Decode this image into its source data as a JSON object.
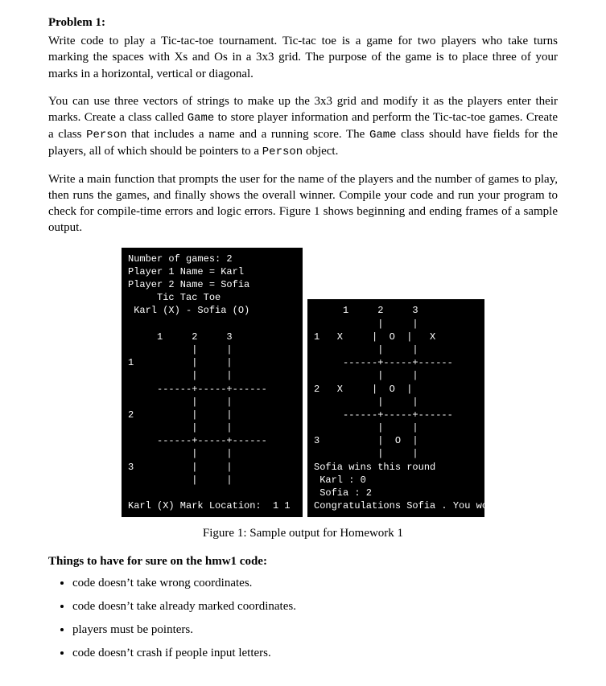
{
  "problem": {
    "title": "Problem 1:",
    "para1": "Write code to play a Tic-tac-toe tournament. Tic-tac toe is a game for two players who take turns marking the spaces with Xs and Os in a 3x3 grid. The purpose of the game is to place three of your marks in a horizontal, vertical or diagonal.",
    "para2_a": "You can use three vectors of strings to make up the 3x3 grid and modify it as the players enter their marks. Create a class called ",
    "para2_game": "Game",
    "para2_b": " to store player information and perform the Tic-tac-toe games. Create a class ",
    "para2_person": "Person",
    "para2_c": " that includes a name and a running score. The ",
    "para2_game2": "Game",
    "para2_d": " class should have fields for the players, all of which should be pointers to a ",
    "para2_person2": "Person",
    "para2_e": " object.",
    "para3": "Write a main function that prompts the user for the name of the players and the number of games to play, then runs the games, and finally shows the overall winner. Compile your code and run your program to check for compile-time errors and logic errors. Figure 1 shows beginning and ending frames of a sample output."
  },
  "terminal_left": "Number of games: 2\nPlayer 1 Name = Karl\nPlayer 2 Name = Sofia\n     Tic Tac Toe\n Karl (X) - Sofia (O)\n\n     1     2     3\n           |     |\n1          |     |\n           |     |\n     ------+-----+------\n           |     |\n2          |     |\n           |     |\n     ------+-----+------\n           |     |\n3          |     |\n           |     |\n\nKarl (X) Mark Location:  1 1",
  "terminal_right": "     1     2     3\n           |     |\n1   X     |  O  |   X\n           |     |\n     ------+-----+------\n           |     |\n2   X     |  O  |\n           |     |\n     ------+-----+------\n           |     |\n3          |  O  |\n           |     |\nSofia wins this round\n Karl : 0\n Sofia : 2\nCongratulations Sofia . You won!",
  "figure_caption": "Figure 1: Sample output for Homework 1",
  "things": {
    "title": "Things to have for sure on the hmw1 code:",
    "items": [
      "code doesn’t take wrong coordinates.",
      "code doesn’t take already marked coordinates.",
      "players must be pointers.",
      "code doesn’t crash if people input letters."
    ]
  }
}
